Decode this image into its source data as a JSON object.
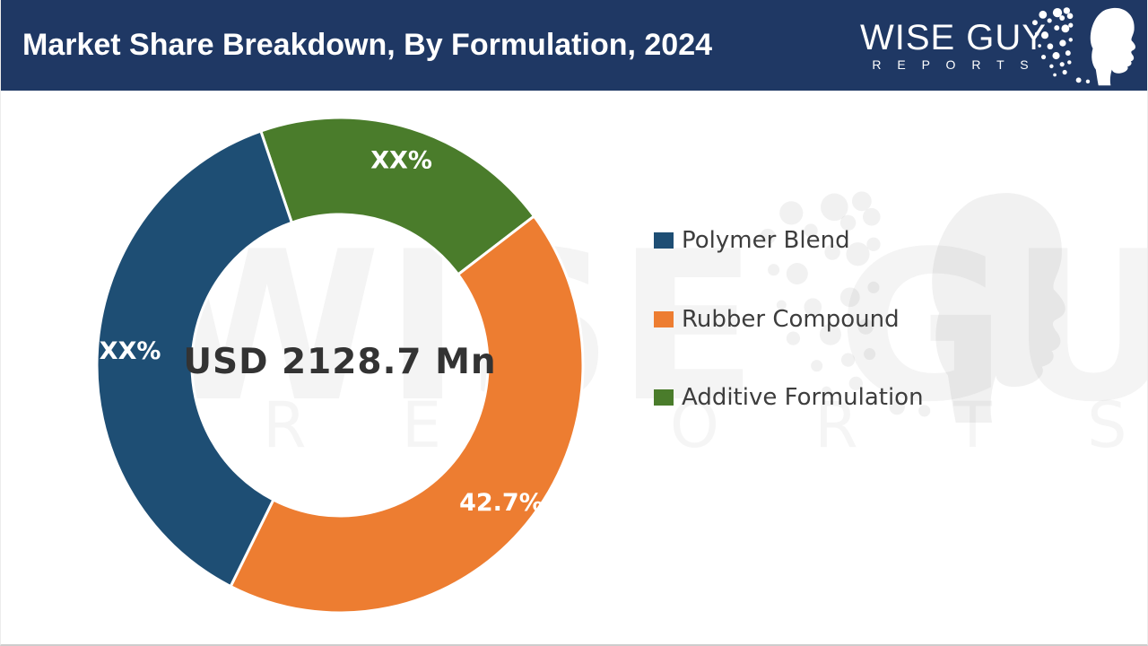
{
  "header": {
    "title": "Market Share Breakdown, By Formulation, 2024",
    "bg_color": "#1F3864",
    "logo": {
      "wordmark": "WISE GUY",
      "subtext": "R E P O R T S"
    }
  },
  "chart_data": {
    "type": "pie",
    "subtype": "donut",
    "title": "Market Share Breakdown, By Formulation, 2024",
    "center_label": "USD 2128.7 Mn",
    "start_angle_deg": -19,
    "legend_position": "right",
    "segments": [
      {
        "name": "Additive Formulation",
        "value": 20.0,
        "display_label": "XX%",
        "color": "#4A7C2B"
      },
      {
        "name": "Rubber Compound",
        "value": 42.7,
        "display_label": "42.7%",
        "color": "#ED7D31"
      },
      {
        "name": "Polymer Blend",
        "value": 37.3,
        "display_label": "XX%",
        "color": "#1E4E74"
      }
    ],
    "legend": {
      "items": [
        {
          "label": "Polymer Blend",
          "color": "#1E4E74"
        },
        {
          "label": "Rubber Compound",
          "color": "#ED7D31"
        },
        {
          "label": "Additive Formulation",
          "color": "#4A7C2B"
        }
      ]
    }
  },
  "watermark": {
    "line1": "WISE GUY",
    "line2": "R E P O R T S"
  }
}
